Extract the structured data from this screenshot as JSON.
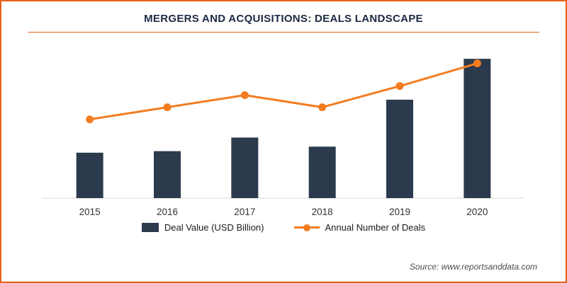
{
  "title": "MERGERS AND ACQUISITIONS: DEALS LANDSCAPE",
  "source": "Source: www.reportsanddata.com",
  "legend": {
    "bar_label": "Deal Value (USD Billion)",
    "line_label": "Annual Number of Deals"
  },
  "colors": {
    "bar": "#2b3a4d",
    "line": "#f47c20",
    "title": "#1b2a41",
    "border": "#e4611b",
    "axis": "#d9d9d9",
    "tick_text": "#333333",
    "source_text": "#4d4d4d"
  },
  "chart_data": {
    "type": "bar",
    "categories": [
      "2015",
      "2016",
      "2017",
      "2018",
      "2019",
      "2020"
    ],
    "series": [
      {
        "name": "Deal Value (USD Billion)",
        "type": "bar",
        "values": [
          30,
          31,
          40,
          34,
          65,
          92
        ]
      },
      {
        "name": "Annual Number of Deals",
        "type": "line",
        "values": [
          52,
          60,
          68,
          60,
          74,
          89
        ]
      }
    ],
    "title": "MERGERS AND ACQUISITIONS: DEALS LANDSCAPE",
    "xlabel": "",
    "ylabel": "",
    "ylim": [
      0,
      100
    ],
    "grid": false,
    "legend_position": "bottom"
  }
}
